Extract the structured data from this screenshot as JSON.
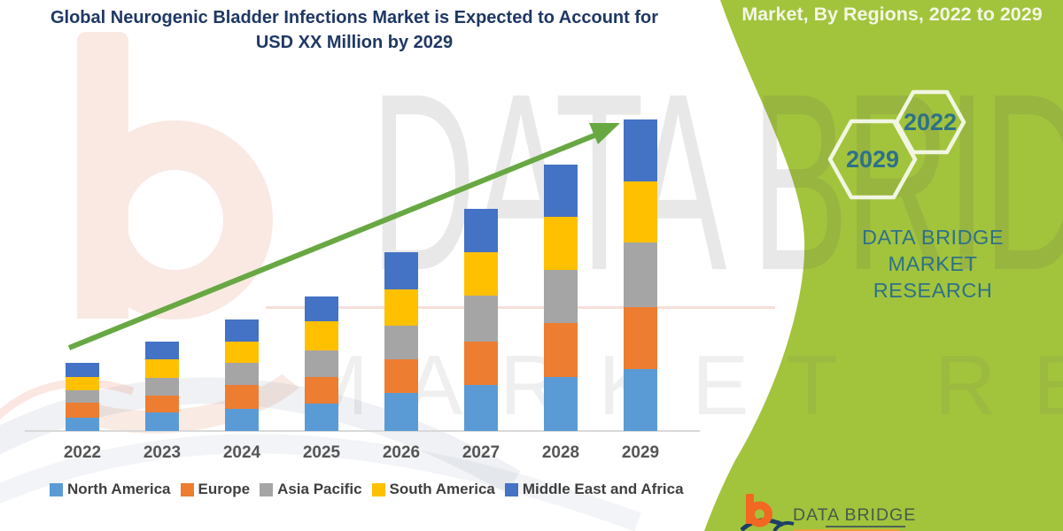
{
  "title": {
    "lines": [
      "Global Neurogenic Bladder Infections Market is Expected to Account for",
      "USD XX Million by 2029"
    ]
  },
  "header": {
    "ribbon_text": "Market, By Regions, 2022 to 2029"
  },
  "side_panel": {
    "hexagons": [
      {
        "label": "2029"
      },
      {
        "label": "2022"
      }
    ],
    "brand_lines": [
      "DATA BRIDGE MARKET",
      "RESEARCH"
    ]
  },
  "watermark": {
    "line1": "DATA BRIDGE",
    "line2": "MARKET RESEARCH"
  },
  "footer_logo": {
    "brand": "DATA BRIDGE"
  },
  "colors": {
    "panel_green": "#A2C43C",
    "arrow_green": "#68A843",
    "title_navy": "#1F3864",
    "teal_text": "#2E7189",
    "axis_gray": "#D9D9D9",
    "logo_orange": "#F26822",
    "logo_navy": "#1E3F66"
  },
  "chart_data": {
    "type": "bar",
    "stacked": true,
    "title": "Global Neurogenic Bladder Infections Market is Expected to Account for USD XX Million by 2029",
    "values_unit": "relative units (actual USD values shown as XX Million, undisclosed)",
    "categories": [
      "2022",
      "2023",
      "2024",
      "2025",
      "2026",
      "2027",
      "2028",
      "2029"
    ],
    "series": [
      {
        "name": "North America",
        "color": "#5B9BD5",
        "values": [
          15,
          21,
          25,
          31,
          43,
          52,
          61,
          70
        ]
      },
      {
        "name": "Europe",
        "color": "#ED7D31",
        "values": [
          17,
          19,
          27,
          30,
          38,
          49,
          61,
          70
        ]
      },
      {
        "name": "Asia Pacific",
        "color": "#A5A5A5",
        "values": [
          14,
          20,
          25,
          30,
          38,
          52,
          60,
          73
        ]
      },
      {
        "name": "South America",
        "color": "#FFC000",
        "values": [
          15,
          21,
          24,
          33,
          41,
          49,
          60,
          69
        ]
      },
      {
        "name": "Middle East and Africa",
        "color": "#4472C4",
        "values": [
          16,
          20,
          25,
          28,
          42,
          49,
          59,
          70
        ]
      }
    ],
    "totals": [
      77,
      101,
      126,
      152,
      202,
      251,
      301,
      352
    ],
    "trend_arrow": "upward from 2022 to 2029",
    "legend_position": "bottom",
    "xlabel": "",
    "ylabel": ""
  }
}
